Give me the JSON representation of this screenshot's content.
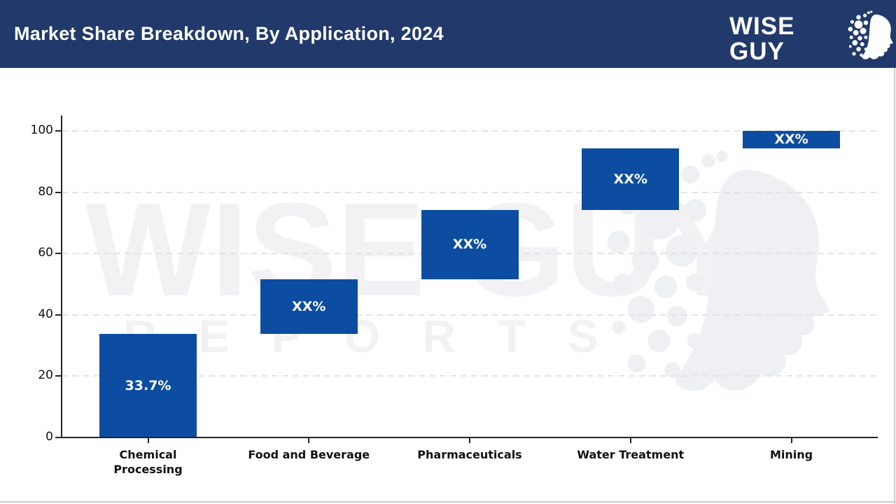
{
  "header": {
    "title": "Market Share Breakdown, By Application, 2024",
    "background_color": "#213a6b"
  },
  "logo": {
    "line1": "WISE GUY",
    "line2": "REPORTS",
    "icon": "head-profile-dots-icon",
    "color": "#ffffff"
  },
  "watermark": {
    "line1": "WISE GUY",
    "line2": "REPORTS",
    "icon": "head-profile-dots-icon",
    "color": "#f2f2f5"
  },
  "chart_data": {
    "type": "bar",
    "subtype": "waterfall",
    "title": "Market Share Breakdown, By Application, 2024",
    "categories": [
      "Chemical\nProcessing",
      "Food and Beverage",
      "Pharmaceuticals",
      "Water Treatment",
      "Mining"
    ],
    "segments": [
      {
        "category": "Chemical Processing",
        "start": 0,
        "end": 33.7,
        "label": "33.7%"
      },
      {
        "category": "Food and Beverage",
        "start": 33.7,
        "end": 51.6,
        "label": "XX%"
      },
      {
        "category": "Pharmaceuticals",
        "start": 51.6,
        "end": 74.2,
        "label": "XX%"
      },
      {
        "category": "Water Treatment",
        "start": 74.2,
        "end": 94.3,
        "label": "XX%"
      },
      {
        "category": "Mining",
        "start": 94.3,
        "end": 100,
        "label": "XX%"
      }
    ],
    "ylim": [
      0,
      100
    ],
    "yticks": [
      0,
      20,
      40,
      60,
      80,
      100
    ],
    "grid": "horizontal-dashed",
    "legend": "none",
    "bar_color": "#0c4da2",
    "bar_label_color": "#ffffff",
    "axis_color": "#262626"
  }
}
